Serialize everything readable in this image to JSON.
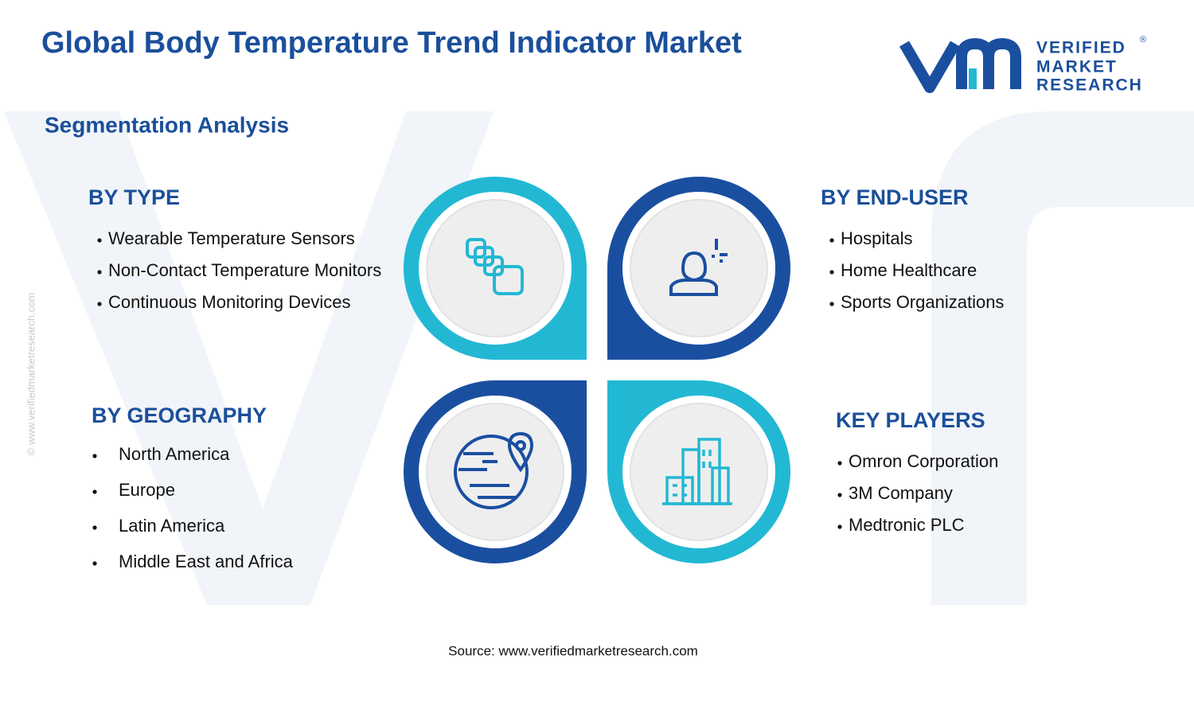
{
  "header": {
    "title": "Global Body Temperature Trend Indicator Market",
    "logo": {
      "line1": "VERIFIED",
      "line2": "MARKET",
      "line3": "RESEARCH",
      "mark": "®"
    }
  },
  "subtitle": "Segmentation Analysis",
  "segments": [
    {
      "heading": "BY TYPE",
      "items": [
        "Wearable Temperature Sensors",
        "Non-Contact Temperature Monitors",
        "Continuous Monitoring Devices"
      ]
    },
    {
      "heading": "BY END-USER",
      "items": [
        "Hospitals",
        "Home Healthcare",
        "Sports Organizations"
      ]
    },
    {
      "heading": "BY GEOGRAPHY",
      "items": [
        "North America",
        "Europe",
        "Latin America",
        "Middle East and Africa"
      ]
    },
    {
      "heading": "KEY PLAYERS",
      "items": [
        "Omron Corporation",
        "3M Company",
        "Medtronic PLC"
      ]
    }
  ],
  "source": "Source: www.verifiedmarketresearch.com",
  "watermark": "© www.verifiedmarketresearch.com"
}
